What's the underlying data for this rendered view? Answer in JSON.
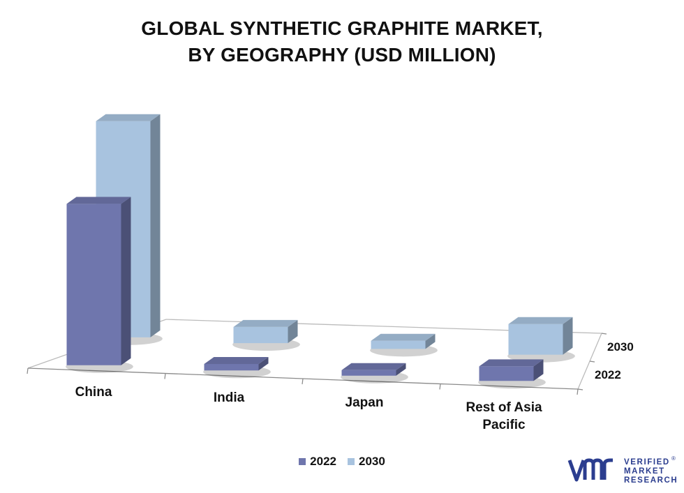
{
  "title_line1": "GLOBAL SYNTHETIC GRAPHITE MARKET,",
  "title_line2": "BY GEOGRAPHY (USD MILLION)",
  "colors": {
    "s2022": "#6f76ad",
    "s2030": "#a8c3df"
  },
  "chart_data": {
    "type": "bar",
    "title": "GLOBAL SYNTHETIC GRAPHITE MARKET, BY GEOGRAPHY (USD MILLION)",
    "categories": [
      "China",
      "India",
      "Japan",
      "Rest of Asia Pacific"
    ],
    "series": [
      {
        "name": "2022",
        "values": [
          100,
          4,
          3,
          9
        ]
      },
      {
        "name": "2030",
        "values": [
          134,
          10,
          5,
          19
        ]
      }
    ],
    "depth_labels": [
      "2030",
      "2022"
    ],
    "legend_position": "bottom",
    "grid": false,
    "three_d": true
  },
  "logo": {
    "mark": "vmr",
    "line1": "VERIFIED",
    "line2": "MARKET",
    "line3": "RESEARCH",
    "reg": "®"
  }
}
